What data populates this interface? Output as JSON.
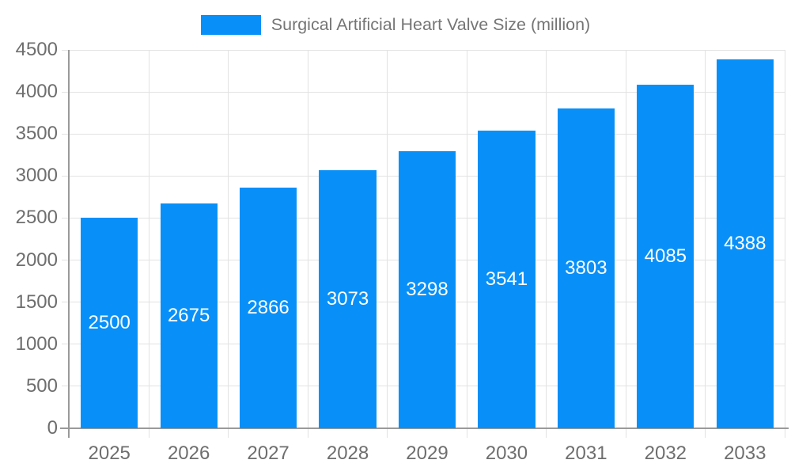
{
  "legend": {
    "series_label": "Surgical Artificial Heart Valve Size (million)"
  },
  "chart_data": {
    "type": "bar",
    "title": "Surgical Artificial Heart Valve Size (million)",
    "xlabel": "",
    "ylabel": "",
    "categories": [
      "2025",
      "2026",
      "2027",
      "2028",
      "2029",
      "2030",
      "2031",
      "2032",
      "2033"
    ],
    "values": [
      2500,
      2675,
      2866,
      3073,
      3298,
      3541,
      3803,
      4085,
      4388
    ],
    "series": [
      {
        "name": "Surgical Artificial Heart Valve Size (million)",
        "values": [
          2500,
          2675,
          2866,
          3073,
          3298,
          3541,
          3803,
          4085,
          4388
        ]
      }
    ],
    "ylim": [
      0,
      4500
    ],
    "yticks": [
      0,
      500,
      1000,
      1500,
      2000,
      2500,
      3000,
      3500,
      4000,
      4500
    ],
    "grid": true,
    "legend_position": "top",
    "value_labels": "inside-center"
  },
  "colors": {
    "bar": "#0890f8",
    "bar_label": "#ffffff",
    "axis_text": "#6e6e6e",
    "legend_text": "#757575",
    "grid_line": "#e2e2e2",
    "axis_line": "#9a9a9a",
    "background": "#ffffff"
  }
}
